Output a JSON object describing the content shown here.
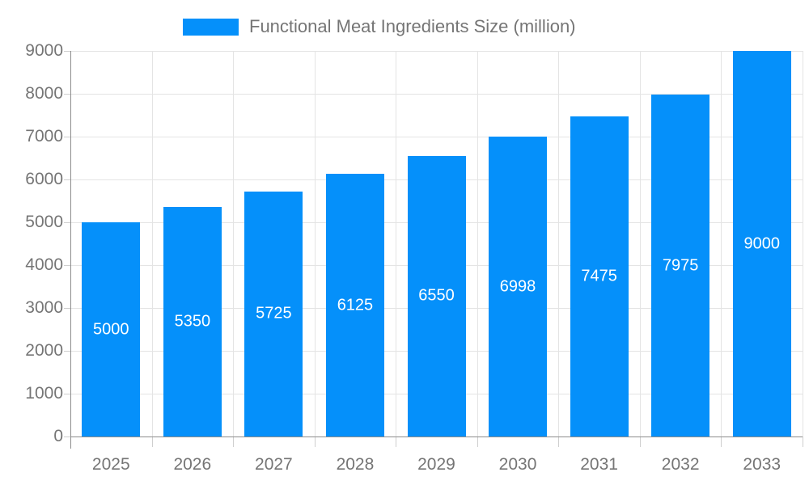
{
  "legend": {
    "label": "Functional Meat Ingredients Size (million)"
  },
  "colors": {
    "bar": "#0590fa",
    "grid": "#e4e4e4",
    "axis_line": "#8d8d8d",
    "tick": "#cfcfcf",
    "axis_text": "#757575",
    "value_text": "#ffffff",
    "background": "#ffffff"
  },
  "chart_data": {
    "type": "bar",
    "title": "",
    "legend_label": "Functional Meat Ingredients Size (million)",
    "legend_position": "top",
    "categories": [
      "2025",
      "2026",
      "2027",
      "2028",
      "2029",
      "2030",
      "2031",
      "2032",
      "2033"
    ],
    "values": [
      5000,
      5350,
      5725,
      6125,
      6550,
      6998,
      7475,
      7975,
      9000
    ],
    "xlabel": "",
    "ylabel": "",
    "ylim": [
      0,
      9000
    ],
    "yticks": [
      0,
      1000,
      2000,
      3000,
      4000,
      5000,
      6000,
      7000,
      8000,
      9000
    ],
    "grid": true,
    "bar_value_labels": true
  }
}
